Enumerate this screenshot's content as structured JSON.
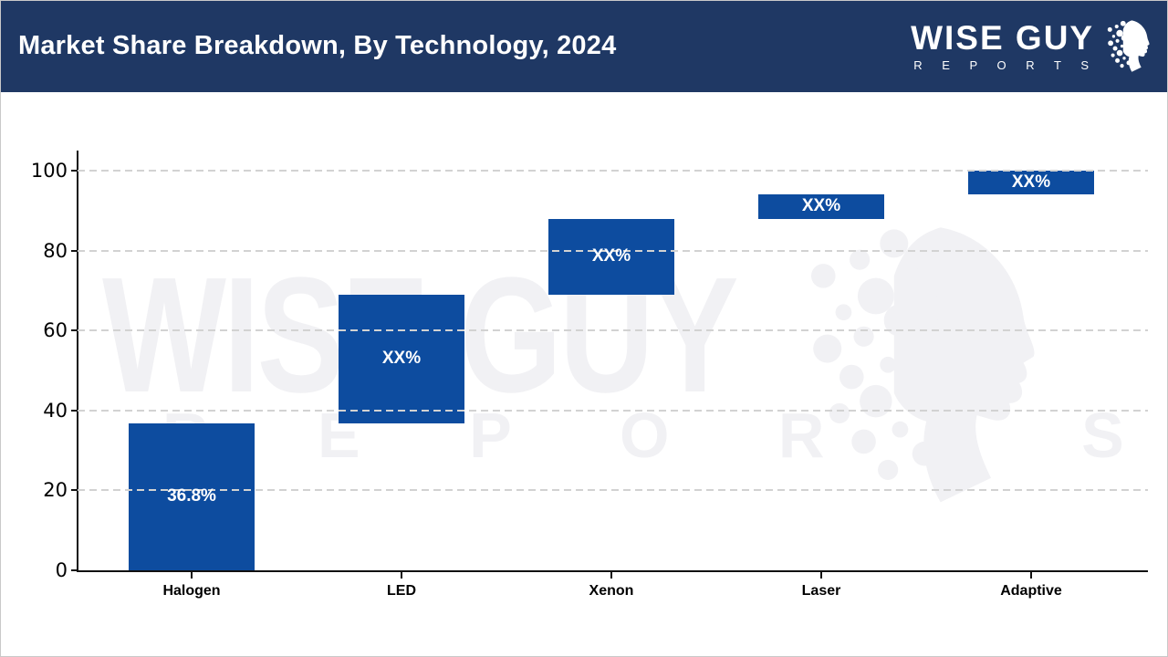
{
  "header": {
    "title": "Market Share Breakdown, By Technology, 2024",
    "logo": {
      "line1": "WISE GUY",
      "line2": "R E P O R T S"
    }
  },
  "watermark": {
    "line1": "WISE GUY",
    "line2": "R E P O R T S"
  },
  "colors": {
    "header_bg": "#1F3864",
    "bar": "#0D4C9F",
    "grid": "#D2D2D2",
    "axis": "#111111",
    "bar_label_text": "#FFFFFF",
    "watermark": "#F1F1F4"
  },
  "chart_data": {
    "type": "bar",
    "subtype": "waterfall",
    "title": "Market Share Breakdown, By Technology, 2024",
    "xlabel": "",
    "ylabel": "",
    "categories": [
      "Halogen",
      "LED",
      "Xenon",
      "Laser",
      "Adaptive"
    ],
    "segments": [
      {
        "category": "Halogen",
        "start": 0,
        "end": 36.8,
        "value": 36.8,
        "label": "36.8%"
      },
      {
        "category": "LED",
        "start": 36.8,
        "end": 69,
        "value": 32.2,
        "label": "XX%"
      },
      {
        "category": "Xenon",
        "start": 69,
        "end": 88,
        "value": 19,
        "label": "XX%"
      },
      {
        "category": "Laser",
        "start": 88,
        "end": 94,
        "value": 6,
        "label": "XX%"
      },
      {
        "category": "Adaptive",
        "start": 94,
        "end": 100,
        "value": 6,
        "label": "XX%"
      }
    ],
    "y_ticks": [
      0,
      20,
      40,
      60,
      80,
      100
    ],
    "ylim": [
      0,
      105
    ],
    "grid": "horizontal dashed, drawn over bars",
    "legend": "none"
  }
}
